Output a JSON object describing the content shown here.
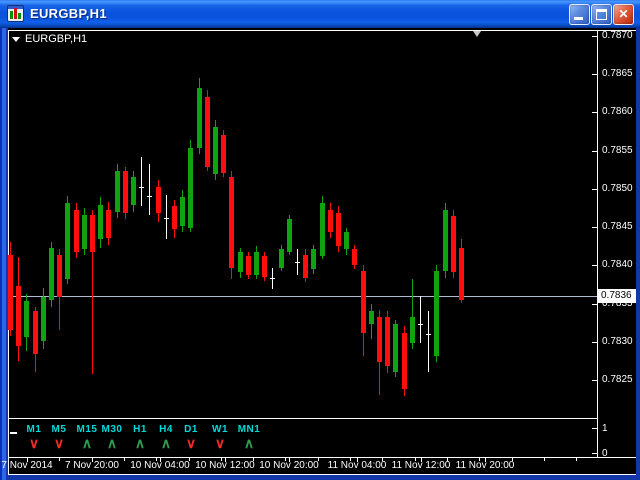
{
  "window": {
    "title": "EURGBP,H1",
    "controls": {
      "minimize": "minimize",
      "maximize": "maximize",
      "close": "close",
      "close_glyph": "✕"
    }
  },
  "chart": {
    "symbol_label": "EURGBP,H1",
    "current_price": "0.7836",
    "colors": {
      "background": "#000000",
      "axis": "#ffffff",
      "bull": "#0FA30F",
      "bear": "#FF0E0E",
      "doji": "#FFFFFF",
      "price_line": "#B2BDD1",
      "timeframe_text": "#00D9D9",
      "arrow_up": "#2E9E4E",
      "arrow_down": "#F22C2C",
      "titlebar_blue": "#0A53DD",
      "close_red": "#D4401F"
    },
    "subwindow": {
      "timeframes": [
        {
          "label": "M1",
          "signal": "down"
        },
        {
          "label": "M5",
          "signal": "down"
        },
        {
          "label": "M15",
          "signal": "up"
        },
        {
          "label": "M30",
          "signal": "up"
        },
        {
          "label": "H1",
          "signal": "up"
        },
        {
          "label": "H4",
          "signal": "up"
        },
        {
          "label": "D1",
          "signal": "down"
        },
        {
          "label": "W1",
          "signal": "down"
        },
        {
          "label": "MN1",
          "signal": "up"
        }
      ],
      "up_glyph": "∧",
      "down_glyph": "∨",
      "scale_labels": [
        "1",
        "0"
      ]
    }
  },
  "chart_data": {
    "type": "candlestick",
    "title": "EURGBP,H1",
    "grid": "off",
    "legend": "none",
    "ylim": [
      0.78201,
      0.78708
    ],
    "y_ticks": [
      "0.7870",
      "0.7865",
      "0.7860",
      "0.7855",
      "0.7850",
      "0.7845",
      "0.7840",
      "0.7835",
      "0.7830",
      "0.7825"
    ],
    "x_labels": [
      "7 Nov 2014",
      "7 Nov 20:00",
      "10 Nov 04:00",
      "10 Nov 12:00",
      "10 Nov 20:00",
      "11 Nov 04:00",
      "11 Nov 12:00",
      "11 Nov 20:00"
    ],
    "current_price": 0.7836,
    "candle_format": [
      "open",
      "high",
      "low",
      "close",
      "direction"
    ],
    "candles": [
      [
        0.78414,
        0.7843,
        0.78308,
        0.78316,
        "down"
      ],
      [
        0.78373,
        0.78411,
        0.78275,
        0.78294,
        "down"
      ],
      [
        0.78306,
        0.78362,
        0.78288,
        0.78353,
        "up"
      ],
      [
        0.7834,
        0.78345,
        0.78261,
        0.78284,
        "down"
      ],
      [
        0.78301,
        0.78371,
        0.7829,
        0.78358,
        "up"
      ],
      [
        0.78355,
        0.7843,
        0.78345,
        0.78423,
        "up"
      ],
      [
        0.78414,
        0.78421,
        0.78316,
        0.78358,
        "down"
      ],
      [
        0.78382,
        0.78491,
        0.78375,
        0.78482,
        "up"
      ],
      [
        0.78473,
        0.78481,
        0.7841,
        0.78418,
        "down"
      ],
      [
        0.78421,
        0.78475,
        0.78414,
        0.78466,
        "up"
      ],
      [
        0.78466,
        0.78473,
        0.78258,
        0.78417,
        "down"
      ],
      [
        0.78434,
        0.78489,
        0.78423,
        0.78479,
        "up"
      ],
      [
        0.78473,
        0.78483,
        0.78427,
        0.78436,
        "down"
      ],
      [
        0.7847,
        0.78532,
        0.78462,
        0.78524,
        "up"
      ],
      [
        0.78523,
        0.78528,
        0.7846,
        0.78469,
        "down"
      ],
      [
        0.78479,
        0.78523,
        0.7847,
        0.78515,
        "up"
      ],
      [
        0.78502,
        0.78542,
        0.78477,
        0.78502,
        "doji"
      ],
      [
        0.78491,
        0.78532,
        0.78466,
        0.78491,
        "doji"
      ],
      [
        0.78503,
        0.78512,
        0.78457,
        0.78469,
        "down"
      ],
      [
        0.78462,
        0.78492,
        0.78434,
        0.78462,
        "doji"
      ],
      [
        0.78477,
        0.78486,
        0.78436,
        0.78447,
        "down"
      ],
      [
        0.78451,
        0.78499,
        0.78444,
        0.7849,
        "up"
      ],
      [
        0.78449,
        0.78564,
        0.78444,
        0.78554,
        "up"
      ],
      [
        0.78554,
        0.78645,
        0.78545,
        0.78632,
        "up"
      ],
      [
        0.7862,
        0.7863,
        0.78523,
        0.78529,
        "down"
      ],
      [
        0.78519,
        0.7859,
        0.78512,
        0.78581,
        "up"
      ],
      [
        0.7857,
        0.78577,
        0.78515,
        0.78521,
        "down"
      ],
      [
        0.78515,
        0.78523,
        0.78382,
        0.78397,
        "down"
      ],
      [
        0.78391,
        0.78423,
        0.78384,
        0.78417,
        "up"
      ],
      [
        0.78412,
        0.78418,
        0.78382,
        0.78388,
        "down"
      ],
      [
        0.78388,
        0.78425,
        0.78382,
        0.78418,
        "up"
      ],
      [
        0.78412,
        0.78418,
        0.78379,
        0.78385,
        "down"
      ],
      [
        0.78384,
        0.78397,
        0.78369,
        0.78384,
        "doji"
      ],
      [
        0.78397,
        0.78427,
        0.78392,
        0.78421,
        "up"
      ],
      [
        0.78418,
        0.78466,
        0.78413,
        0.7846,
        "up"
      ],
      [
        0.78405,
        0.78421,
        0.78388,
        0.78405,
        "doji"
      ],
      [
        0.78414,
        0.78421,
        0.78378,
        0.78384,
        "down"
      ],
      [
        0.78395,
        0.78427,
        0.78389,
        0.78421,
        "up"
      ],
      [
        0.78412,
        0.78491,
        0.78408,
        0.78482,
        "up"
      ],
      [
        0.78473,
        0.78481,
        0.78436,
        0.78443,
        "down"
      ],
      [
        0.78469,
        0.78478,
        0.78418,
        0.78425,
        "down"
      ],
      [
        0.78421,
        0.78449,
        0.78414,
        0.78444,
        "up"
      ],
      [
        0.78421,
        0.78427,
        0.78395,
        0.78401,
        "down"
      ],
      [
        0.78392,
        0.78401,
        0.78281,
        0.78312,
        "down"
      ],
      [
        0.78323,
        0.78349,
        0.78303,
        0.7834,
        "up"
      ],
      [
        0.78333,
        0.78342,
        0.78231,
        0.78273,
        "down"
      ],
      [
        0.78332,
        0.7834,
        0.78259,
        0.78268,
        "down"
      ],
      [
        0.7826,
        0.78329,
        0.78254,
        0.78323,
        "up"
      ],
      [
        0.78312,
        0.7832,
        0.78229,
        0.78238,
        "down"
      ],
      [
        0.78299,
        0.78382,
        0.7829,
        0.78332,
        "up"
      ],
      [
        0.78323,
        0.7836,
        0.78299,
        0.78323,
        "doji"
      ],
      [
        0.7831,
        0.7834,
        0.7826,
        0.7831,
        "doji"
      ],
      [
        0.78281,
        0.78401,
        0.78274,
        0.78392,
        "up"
      ],
      [
        0.78392,
        0.78482,
        0.78384,
        0.78473,
        "up"
      ],
      [
        0.78464,
        0.78473,
        0.78384,
        0.78391,
        "down"
      ],
      [
        0.78423,
        0.78434,
        0.78351,
        0.78355,
        "down"
      ]
    ]
  }
}
